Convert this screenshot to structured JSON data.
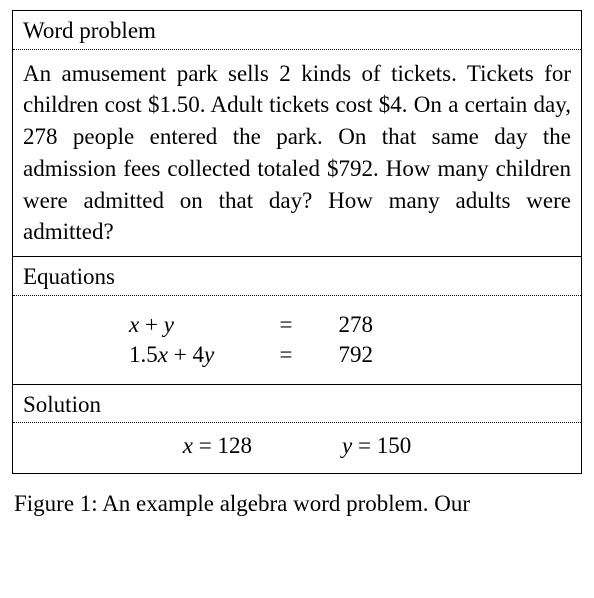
{
  "panel": {
    "background_color": "#ffffff",
    "border_color": "#000000",
    "border_width": 1.5,
    "divider_style": "dotted",
    "font_family": "Times New Roman",
    "font_color": "#000000"
  },
  "problem": {
    "header": "Word problem",
    "header_fontsize": 23,
    "body_fontsize": 23,
    "text": "An amusement park sells 2 kinds of tickets. Tickets for children cost $1.50. Adult tickets cost $4. On a certain day, 278 people entered the park. On that same day the admission fees collected totaled $792. How many children were admitted on that day? How many adults were admitted?"
  },
  "equations": {
    "header": "Equations",
    "header_fontsize": 23,
    "body_fontsize": 23,
    "rows": [
      {
        "lhs_coef1": "",
        "lhs_var1": "x",
        "lhs_op": "+",
        "lhs_coef2": "",
        "lhs_var2": "y",
        "eq": "=",
        "rhs": "278"
      },
      {
        "lhs_coef1": "1.5",
        "lhs_var1": "x",
        "lhs_op": "+",
        "lhs_coef2": "4",
        "lhs_var2": "y",
        "eq": "=",
        "rhs": "792"
      }
    ]
  },
  "solution": {
    "header": "Solution",
    "header_fontsize": 23,
    "body_fontsize": 23,
    "items": [
      {
        "var": "x",
        "eq": "=",
        "value": "128"
      },
      {
        "var": "y",
        "eq": "=",
        "value": "150"
      }
    ]
  },
  "caption": {
    "prefix": "Figure 1: ",
    "text": "An example algebra word problem.  Our",
    "fontsize": 23
  }
}
